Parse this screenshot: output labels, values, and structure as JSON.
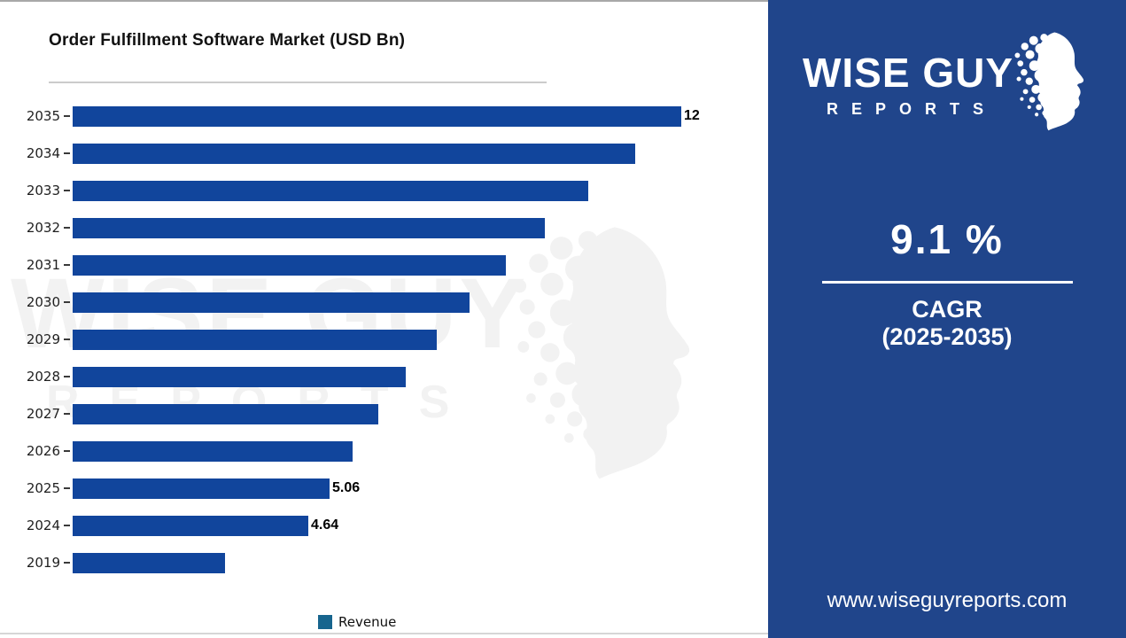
{
  "header": {
    "title": "Order Fulfillment Software Market (USD Bn)"
  },
  "chart_data": {
    "type": "bar",
    "orientation": "horizontal",
    "title": "Order Fulfillment Software Market (USD Bn)",
    "categories": [
      "2035",
      "2034",
      "2033",
      "2032",
      "2031",
      "2030",
      "2029",
      "2028",
      "2027",
      "2026",
      "2025",
      "2024",
      "2019"
    ],
    "values": [
      12,
      11.08,
      10.16,
      9.31,
      8.53,
      7.82,
      7.17,
      6.57,
      6.02,
      5.52,
      5.06,
      4.64,
      3.0
    ],
    "value_labels": {
      "2035": "12",
      "2025": "5.06",
      "2024": "4.64"
    },
    "xlabel": "",
    "ylabel": "",
    "xlim": [
      0,
      12.5
    ],
    "grid": false,
    "legend": {
      "label": "Revenue",
      "position": "bottom-center",
      "swatch_color": "#17658E"
    },
    "bar_color": "#11459C"
  },
  "brand": {
    "name": "WISE GUY",
    "sub": "REPORTS",
    "head_icon": "dotted-head-profile-icon"
  },
  "panel": {
    "cagr_value": "9.1 %",
    "cagr_label": "CAGR",
    "cagr_period": "(2025-2035)",
    "website": "www.wiseguyreports.com",
    "bg_color": "#20458B"
  },
  "watermark": {
    "line1": "WISE GUY",
    "line2": "REPORTS"
  }
}
